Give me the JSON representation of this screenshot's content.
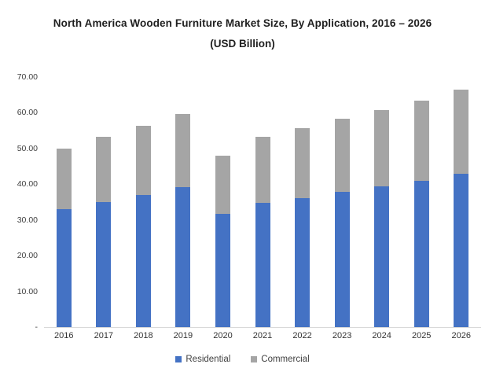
{
  "title": {
    "line1": "North America Wooden Furniture Market Size, By Application, 2016 – 2026",
    "line2": "(USD Billion)"
  },
  "chart_data": {
    "type": "bar",
    "stacked": true,
    "title": "North America Wooden Furniture Market Size, By Application, 2016 – 2026 (USD Billion)",
    "categories": [
      "2016",
      "2017",
      "2018",
      "2019",
      "2020",
      "2021",
      "2022",
      "2023",
      "2024",
      "2025",
      "2026"
    ],
    "series": [
      {
        "name": "Residential",
        "color": "#4472C4",
        "values": [
          33.1,
          35.0,
          36.9,
          39.1,
          31.7,
          34.7,
          36.2,
          37.9,
          39.3,
          40.9,
          43.0
        ]
      },
      {
        "name": "Commercial",
        "color": "#A5A5A5",
        "values": [
          16.9,
          18.2,
          19.3,
          20.4,
          16.3,
          18.6,
          19.5,
          20.4,
          21.4,
          22.5,
          23.6
        ]
      }
    ],
    "totals": [
      50.0,
      53.2,
      56.2,
      59.5,
      48.0,
      53.3,
      55.7,
      58.3,
      60.7,
      63.4,
      66.6
    ],
    "xlabel": "",
    "ylabel": "",
    "ylim": [
      0,
      70
    ],
    "y_tick_labels": [
      "70.00",
      "60.00",
      "50.00",
      "40.00",
      "30.00",
      "20.00",
      "10.00",
      "-"
    ],
    "grid": false,
    "legend_position": "bottom",
    "axis_line_color": "#d9d9d9"
  },
  "colors": {
    "residential": "#4472C4",
    "commercial": "#A5A5A5",
    "title_text": "#1f1f1f",
    "axis_text": "#404040",
    "background": "#ffffff"
  }
}
